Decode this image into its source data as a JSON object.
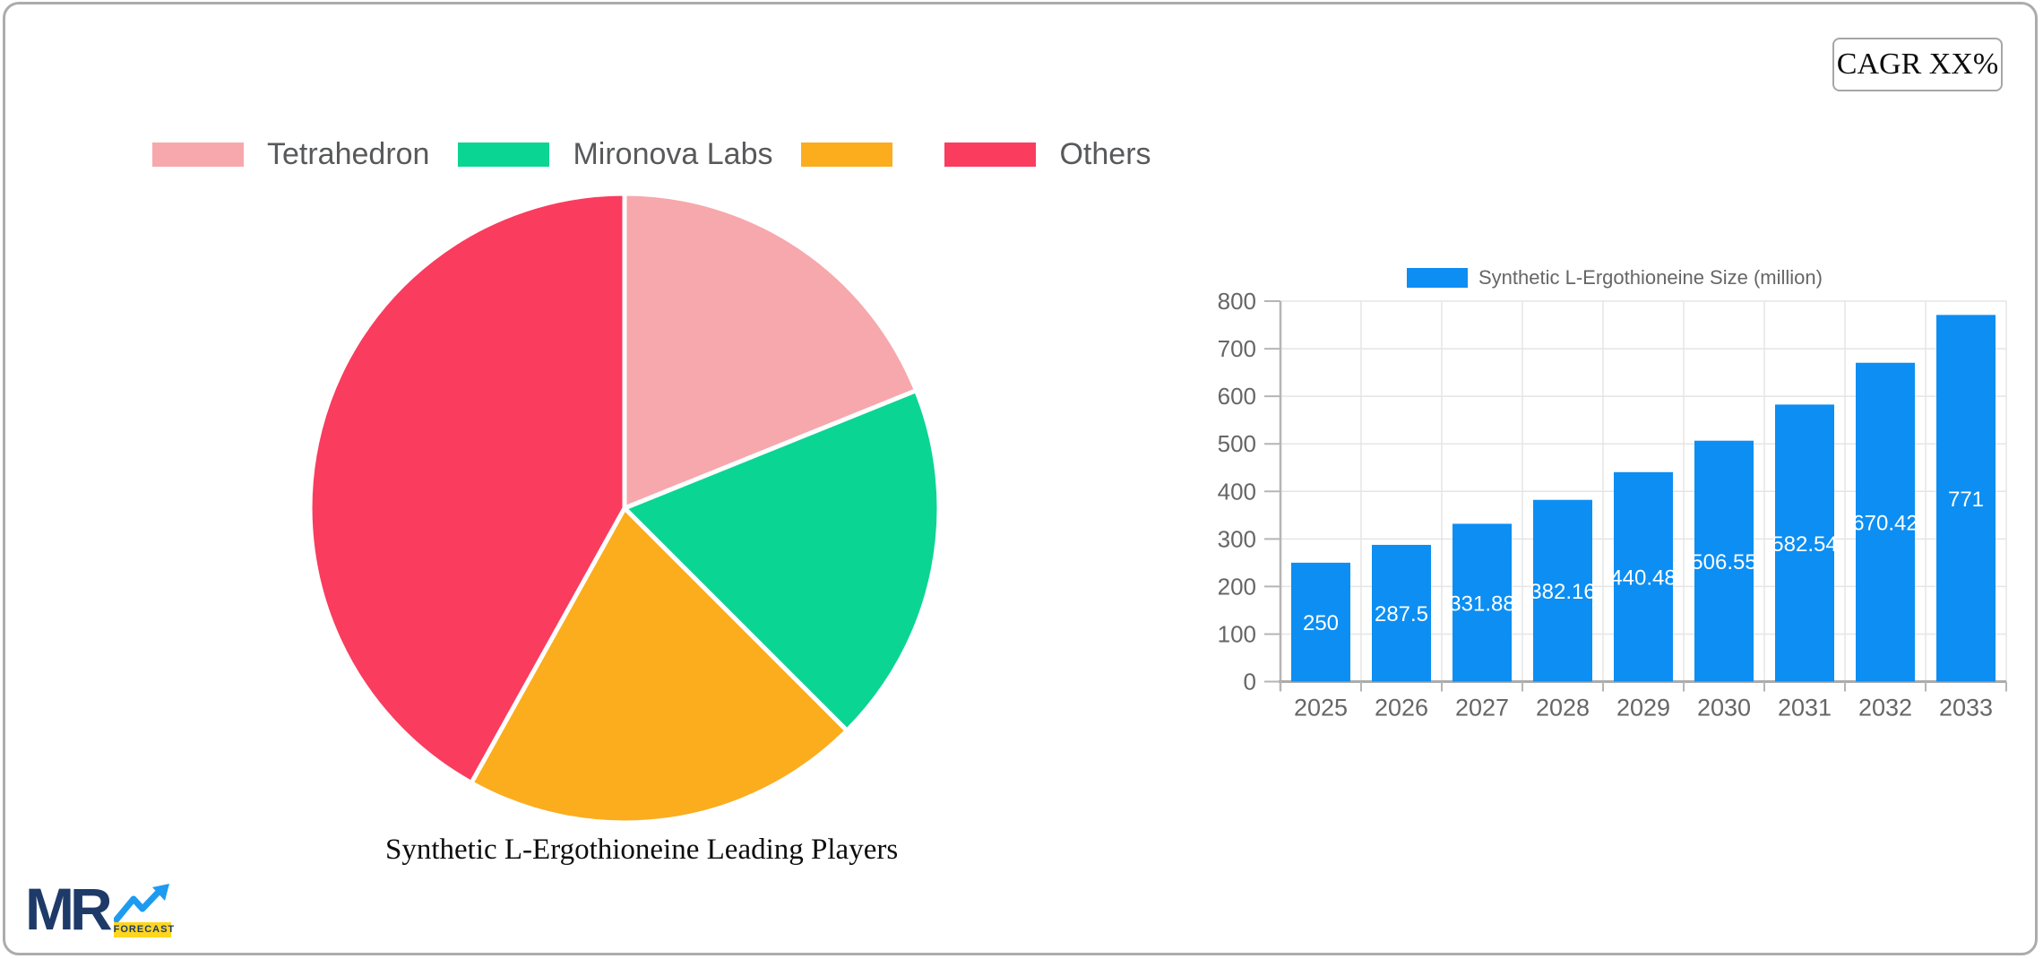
{
  "cagr_box": {
    "label": "CAGR XX%"
  },
  "logo": {
    "mr": "MR",
    "forecast": "FORECAST"
  },
  "chart_data": [
    {
      "type": "pie",
      "title": "Synthetic L-Ergothioneine Leading Players",
      "legend_position": "top",
      "labels": [
        "Tetrahedron",
        "Mironova Labs",
        "",
        "Others"
      ],
      "values": [
        18.9,
        18.6,
        20.6,
        41.9
      ],
      "colors": [
        "#F7A8AC",
        "#0BD592",
        "#FBAD1E",
        "#FA3C5E"
      ],
      "start_angle_deg": 0,
      "direction": "clockwise",
      "slice_border_color": "#ffffff"
    },
    {
      "type": "bar",
      "legend": "Synthetic L-Ergothioneine Size (million)",
      "legend_position": "top",
      "categories": [
        "2025",
        "2026",
        "2027",
        "2028",
        "2029",
        "2030",
        "2031",
        "2032",
        "2033"
      ],
      "values": [
        250,
        287.5,
        331.88,
        382.16,
        440.48,
        506.55,
        582.54,
        670.42,
        771
      ],
      "value_labels": [
        "250",
        "287.5",
        "331.88",
        "382.16",
        "440.48",
        "506.55",
        "582.54",
        "670.42",
        "771"
      ],
      "bar_color": "#0D8EF2",
      "value_label_color": "#ffffff",
      "axis_label_color": "#666666",
      "ylim": [
        0,
        800
      ],
      "yticks": [
        0,
        100,
        200,
        300,
        400,
        500,
        600,
        700,
        800
      ],
      "grid": true
    }
  ]
}
